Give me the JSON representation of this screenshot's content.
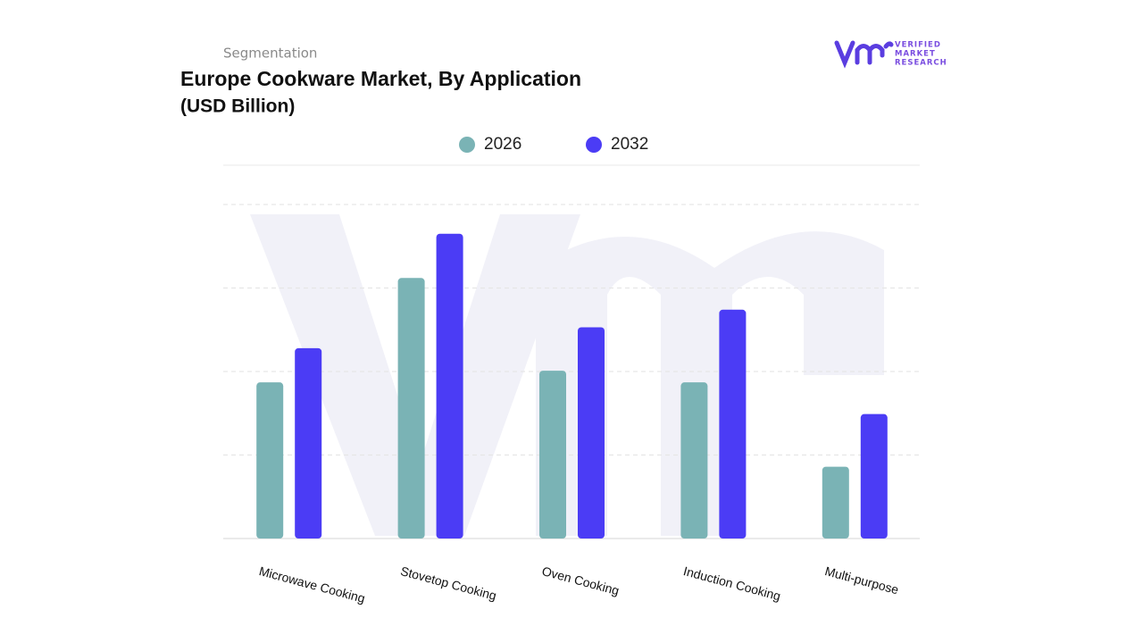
{
  "chart_data": {
    "type": "bar",
    "overline": "Segmentation",
    "title": "Europe Cookware Market, By Application",
    "subtitle": "(USD Billion)",
    "brand": [
      "VERIFIED",
      "MARKET",
      "RESEARCH"
    ],
    "categories": [
      "Microwave Cooking",
      "Stovetop  Cooking",
      "Oven Cooking",
      "Induction Cooking",
      "Multi-purpose"
    ],
    "series": [
      {
        "name": "2026",
        "color": "#7ab3b5",
        "values": [
          1.87,
          3.12,
          2.01,
          1.87,
          0.86
        ]
      },
      {
        "name": "2032",
        "color": "#4b3cf5",
        "values": [
          2.28,
          3.65,
          2.53,
          2.74,
          1.49
        ]
      }
    ],
    "ylim": [
      0,
      4
    ],
    "yticks": [
      1,
      2,
      3,
      4
    ],
    "grid": true
  }
}
